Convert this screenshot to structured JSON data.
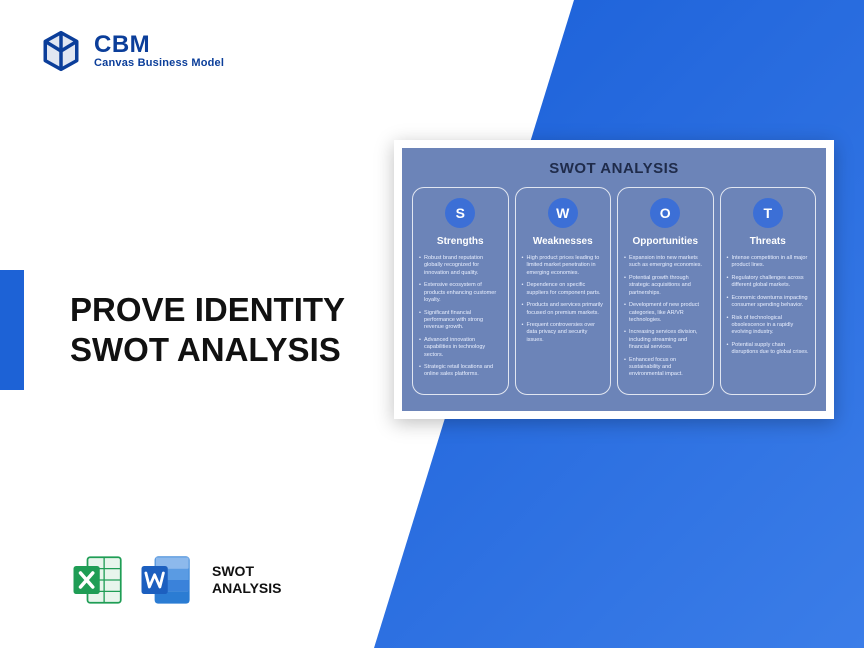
{
  "brand": {
    "name": "CBM",
    "tagline": "Canvas Business Model"
  },
  "headline": {
    "line1": "PROVE IDENTITY",
    "line2": "SWOT ANALYSIS"
  },
  "file_label": {
    "line1": "SWOT",
    "line2": "ANALYSIS"
  },
  "swot": {
    "title": "SWOT ANALYSIS",
    "accent_color": "#3c6fd6",
    "panel_bg": "#6c84b8",
    "columns": [
      {
        "letter": "S",
        "heading": "Strengths",
        "items": [
          "Robust brand reputation globally recognized for innovation and quality.",
          "Extensive ecosystem of products enhancing customer loyalty.",
          "Significant financial performance with strong revenue growth.",
          "Advanced innovation capabilities in technology sectors.",
          "Strategic retail locations and online sales platforms."
        ]
      },
      {
        "letter": "W",
        "heading": "Weaknesses",
        "items": [
          "High product prices leading to limited market penetration in emerging economies.",
          "Dependence on specific suppliers for component parts.",
          "Products and services primarily focused on premium markets.",
          "Frequent controversies over data privacy and security issues."
        ]
      },
      {
        "letter": "O",
        "heading": "Opportunities",
        "items": [
          "Expansion into new markets such as emerging economies.",
          "Potential growth through strategic acquisitions and partnerships.",
          "Development of new product categories, like AR/VR technologies.",
          "Increasing services division, including streaming and financial services.",
          "Enhanced focus on sustainability and environmental impact."
        ]
      },
      {
        "letter": "T",
        "heading": "Threats",
        "items": [
          "Intense competition in all major product lines.",
          "Regulatory challenges across different global markets.",
          "Economic downturns impacting consumer spending behavior.",
          "Risk of technological obsolescence in a rapidly evolving industry.",
          "Potential supply chain disruptions due to global crises."
        ]
      }
    ]
  },
  "colors": {
    "brand_blue": "#0b3e9a",
    "diagonal_start": "#1a5fd8",
    "diagonal_end": "#3b7de8",
    "excel_green": "#1f9d55",
    "word_blue": "#2b7cd3"
  }
}
